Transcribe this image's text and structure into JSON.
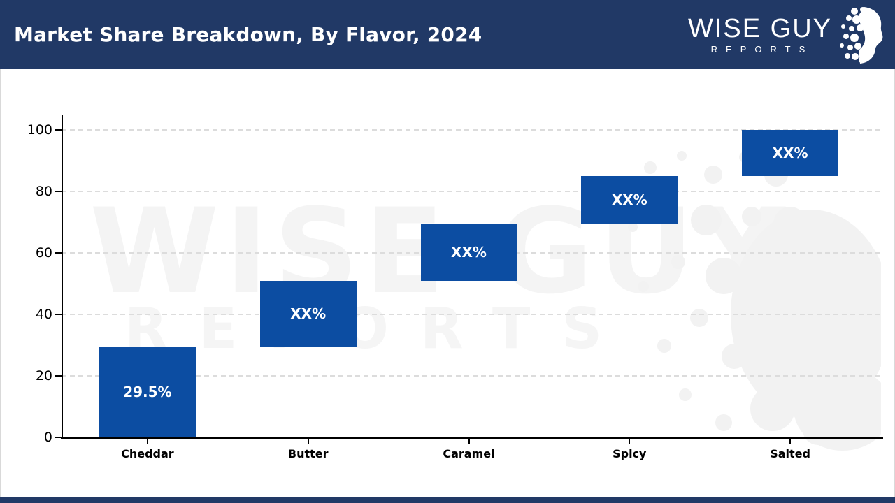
{
  "header": {
    "title": "Market Share Breakdown, By Flavor, 2024",
    "logo": {
      "line1": "WISE GUY",
      "line2": "REPORTS"
    }
  },
  "watermark": {
    "line1": "WISE GUY",
    "line2": "REPORTS"
  },
  "chart_data": {
    "type": "bar",
    "subtype": "waterfall",
    "title": "Market Share Breakdown, By Flavor, 2024",
    "categories": [
      "Cheddar",
      "Butter",
      "Caramel",
      "Spicy",
      "Salted"
    ],
    "segment_values": [
      29.5,
      21.5,
      18.5,
      15.5,
      15
    ],
    "starts": [
      0,
      29.5,
      51,
      69.5,
      85
    ],
    "ends": [
      29.5,
      51,
      69.5,
      85,
      100
    ],
    "bar_labels": [
      "29.5%",
      "XX%",
      "XX%",
      "XX%",
      "XX%"
    ],
    "xlabel": "",
    "ylabel": "",
    "ylim": [
      0,
      100
    ],
    "yticks": [
      0,
      20,
      40,
      60,
      80,
      100
    ],
    "grid": "horizontal-dashed",
    "legend": "none",
    "bar_color": "#0C4DA2",
    "bar_label_color": "#ffffff"
  },
  "colors": {
    "header_bg": "#213966",
    "footer_bg": "#213966",
    "bar": "#0C4DA2",
    "grid": "#dcdcdc",
    "axis": "#000000",
    "watermark": "#f4f4f4"
  }
}
